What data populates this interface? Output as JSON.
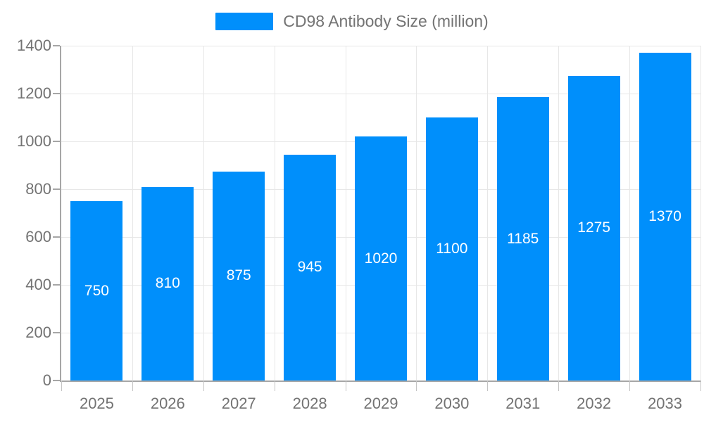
{
  "chart_data": {
    "type": "bar",
    "title": "",
    "legend": {
      "label": "CD98 Antibody Size (million)",
      "position": "top",
      "swatch_color": "#008FFB"
    },
    "categories": [
      "2025",
      "2026",
      "2027",
      "2028",
      "2029",
      "2030",
      "2031",
      "2032",
      "2033"
    ],
    "series": [
      {
        "name": "CD98 Antibody Size (million)",
        "values": [
          750,
          810,
          875,
          945,
          1020,
          1100,
          1185,
          1275,
          1370
        ]
      }
    ],
    "data_labels": [
      "750",
      "810",
      "875",
      "945",
      "1020",
      "1100",
      "1185",
      "1275",
      "1370"
    ],
    "xlabel": "",
    "ylabel": "",
    "ylim": [
      0,
      1400
    ],
    "yticks": [
      0,
      200,
      400,
      600,
      800,
      1000,
      1200,
      1400
    ],
    "grid": true
  },
  "colors": {
    "bar": "#008FFB",
    "data_label_text": "#ffffff",
    "axis_text": "#737373",
    "grid_line": "#e7e7e7",
    "axis_line": "#a6a6a6",
    "x_tick": "#c4c4c4",
    "background": "#ffffff"
  }
}
